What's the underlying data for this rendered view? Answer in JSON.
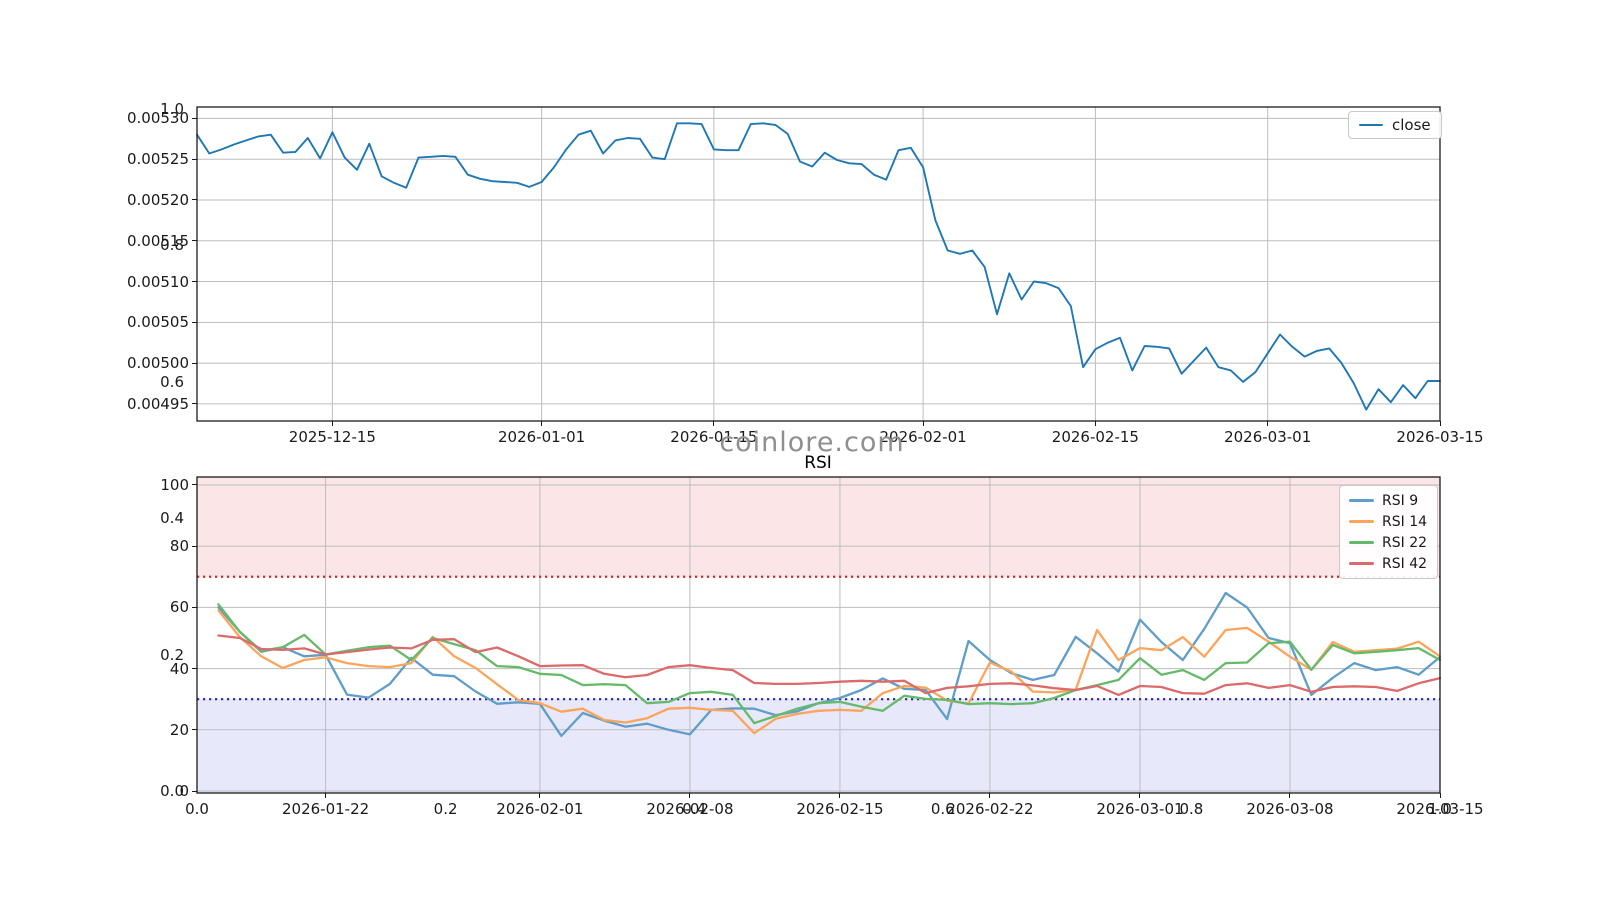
{
  "watermark_text": "coinlore.com",
  "rsi_title": "RSI",
  "price_legend": {
    "label": "close",
    "color": "#1f77b4"
  },
  "rsi_legend": [
    {
      "label": "RSI 9",
      "color": "#609dc8"
    },
    {
      "label": "RSI 14",
      "color": "#fca45a"
    },
    {
      "label": "RSI 22",
      "color": "#65ba69"
    },
    {
      "label": "RSI 42",
      "color": "#dc6a6a"
    }
  ],
  "phantom_axis": {
    "x_labels": [
      "0.0",
      "0.2",
      "0.4",
      "0.6",
      "0.8",
      "1.0"
    ],
    "y_labels": [
      "1.0",
      "0.8",
      "0.6",
      "0.4",
      "0.2",
      "0.0"
    ]
  },
  "chart_data": [
    {
      "type": "line",
      "name": "price",
      "title": "",
      "legend": [
        "close"
      ],
      "legend_position": "upper right",
      "grid": true,
      "x_start": "2025-12-04",
      "x_end": "2026-03-15",
      "x_ticks": [
        "2025-12-15",
        "2026-01-01",
        "2026-01-15",
        "2026-02-01",
        "2026-02-15",
        "2026-03-01",
        "2026-03-15"
      ],
      "ylim": [
        0.004929,
        0.005314
      ],
      "y_ticks": [
        {
          "label": "0.00530",
          "value": 0.0053
        },
        {
          "label": "0.00525",
          "value": 0.00525
        },
        {
          "label": "0.00520",
          "value": 0.0052
        },
        {
          "label": "0.00515",
          "value": 0.00515
        },
        {
          "label": "0.00510",
          "value": 0.0051
        },
        {
          "label": "0.00505",
          "value": 0.00505
        },
        {
          "label": "0.00500",
          "value": 0.005
        },
        {
          "label": "0.00495",
          "value": 0.00495
        }
      ],
      "series": [
        {
          "name": "close",
          "color": "#1f77b4",
          "width": 1.9,
          "start": "2025-12-04",
          "values": [
            0.00528,
            0.005257,
            0.005262,
            0.005268,
            0.005273,
            0.005278,
            0.00528,
            0.005258,
            0.005259,
            0.005276,
            0.005251,
            0.005283,
            0.005252,
            0.005237,
            0.005269,
            0.005229,
            0.005221,
            0.005215,
            0.005252,
            0.005253,
            0.005254,
            0.005253,
            0.005231,
            0.005226,
            0.005223,
            0.005222,
            0.005221,
            0.005216,
            0.005222,
            0.00524,
            0.005262,
            0.00528,
            0.005285,
            0.005257,
            0.005273,
            0.005276,
            0.005275,
            0.005252,
            0.00525,
            0.005294,
            0.005294,
            0.005293,
            0.005262,
            0.005261,
            0.005261,
            0.005293,
            0.005294,
            0.005292,
            0.005281,
            0.005247,
            0.005241,
            0.005258,
            0.005249,
            0.005245,
            0.005244,
            0.005231,
            0.005225,
            0.005261,
            0.005264,
            0.00524,
            0.005175,
            0.005138,
            0.005134,
            0.005138,
            0.005118,
            0.00506,
            0.00511,
            0.005078,
            0.0051,
            0.005098,
            0.005092,
            0.00507,
            0.004995,
            0.005017,
            0.005025,
            0.005031,
            0.004991,
            0.005021,
            0.00502,
            0.005018,
            0.004987,
            0.005003,
            0.005019,
            0.004995,
            0.004991,
            0.004977,
            0.004989,
            0.005012,
            0.005035,
            0.00502,
            0.005008,
            0.005015,
            0.005018,
            0.005,
            0.004975,
            0.004943,
            0.004968,
            0.004952,
            0.004973,
            0.004957,
            0.004978,
            0.004978
          ]
        }
      ]
    },
    {
      "type": "line",
      "name": "rsi",
      "title": "RSI",
      "legend": [
        "RSI 9",
        "RSI 14",
        "RSI 22",
        "RSI 42"
      ],
      "legend_position": "upper right",
      "grid": true,
      "x_start": "2026-01-16",
      "x_end": "2026-03-15",
      "x_ticks": [
        "2026-01-22",
        "2026-02-01",
        "2026-02-08",
        "2026-02-15",
        "2026-02-22",
        "2026-03-01",
        "2026-03-08",
        "2026-03-15"
      ],
      "ylim": [
        -0.65,
        102.6
      ],
      "y_ticks": [
        {
          "label": "100",
          "value": 100
        },
        {
          "label": "80",
          "value": 80
        },
        {
          "label": "60",
          "value": 60
        },
        {
          "label": "40",
          "value": 40
        },
        {
          "label": "20",
          "value": 20
        },
        {
          "label": "0",
          "value": 0
        }
      ],
      "bands": [
        {
          "name": "overbought-band",
          "from": 70,
          "to": 102.6,
          "color": "rgba(235,80,84,0.15)"
        },
        {
          "name": "oversold-band",
          "from": -0.65,
          "to": 30,
          "color": "rgba(95,95,225,0.14)"
        }
      ],
      "hlines": [
        {
          "name": "overbought-line",
          "y": 70,
          "color": "#d62728"
        },
        {
          "name": "oversold-line",
          "y": 30,
          "color": "#2222ce"
        }
      ],
      "series": [
        {
          "name": "RSI 9",
          "color": "#609dc8",
          "width": 2.3,
          "start": "2026-01-17",
          "values": [
            60,
            52,
            45.5,
            47,
            44,
            44.5,
            31.5,
            30.5,
            35,
            43.5,
            38,
            37.5,
            32.5,
            28.5,
            29,
            28.5,
            18,
            25.5,
            23,
            21,
            22,
            20,
            18.5,
            26.5,
            27,
            26.9,
            24.8,
            26,
            28.7,
            30.4,
            33,
            36.8,
            33.4,
            33,
            23.5,
            49,
            42.8,
            38.5,
            36.3,
            37.9,
            50.4,
            45,
            39,
            56,
            48.7,
            42.8,
            53,
            64.7,
            60,
            50,
            48.3,
            31.4,
            37,
            41.8,
            39.5,
            40.5,
            38,
            43.8
          ]
        },
        {
          "name": "RSI 14",
          "color": "#fca45a",
          "width": 2.3,
          "start": "2026-01-17",
          "values": [
            59,
            50.3,
            44,
            40.2,
            42.8,
            43.7,
            41.8,
            40.8,
            40.5,
            41.8,
            50.4,
            44,
            40.2,
            34.9,
            29.7,
            28.7,
            25.9,
            26.9,
            23.2,
            22.4,
            23.8,
            26.9,
            27.2,
            26.5,
            26.2,
            18.9,
            23.6,
            25.2,
            26.2,
            26.5,
            26.2,
            32,
            34.3,
            33.8,
            29.5,
            28.6,
            42,
            39,
            32.5,
            32.2,
            33.1,
            52.6,
            42.8,
            46.7,
            46,
            50.3,
            43.9,
            52.6,
            53.3,
            48.8,
            43.9,
            39.6,
            48.7,
            45.5,
            46,
            46.5,
            48.8,
            44
          ]
        },
        {
          "name": "RSI 22",
          "color": "#65ba69",
          "width": 2.3,
          "start": "2026-01-17",
          "values": [
            61,
            52,
            45.8,
            47,
            51,
            44.6,
            45.8,
            47,
            47.5,
            42.8,
            50,
            48,
            46,
            40.8,
            40.5,
            38.3,
            37.9,
            34.6,
            34.9,
            34.6,
            28.7,
            29.1,
            32,
            32.4,
            31.4,
            22.2,
            24.5,
            26.9,
            28.7,
            29.1,
            27.5,
            26.2,
            31.1,
            30.1,
            29.8,
            28.4,
            28.7,
            28.4,
            28.7,
            30.4,
            33,
            34.6,
            36.3,
            43.4,
            38,
            39.5,
            36.3,
            41.8,
            42,
            48.3,
            48.8,
            39.6,
            47.7,
            45,
            45.5,
            46,
            46.7,
            42.8
          ]
        },
        {
          "name": "RSI 42",
          "color": "#dc6a6a",
          "width": 2.3,
          "start": "2026-01-17",
          "values": [
            50.8,
            50,
            46.4,
            46.1,
            46.6,
            44.6,
            45.4,
            46.2,
            46.9,
            46.6,
            49.4,
            49.6,
            45.4,
            46.9,
            44,
            40.8,
            41,
            41.1,
            38.3,
            37.2,
            37.9,
            40.5,
            41.1,
            40.2,
            39.5,
            35.3,
            35,
            35,
            35.3,
            35.7,
            36,
            35.7,
            36,
            32,
            33.7,
            34.2,
            35,
            35.2,
            34.5,
            33.6,
            33,
            34.3,
            31.4,
            34.3,
            34,
            32,
            31.8,
            34.6,
            35.2,
            33.7,
            34.6,
            32.4,
            34,
            34.2,
            34,
            32.7,
            35.2,
            36.9
          ]
        }
      ]
    }
  ]
}
